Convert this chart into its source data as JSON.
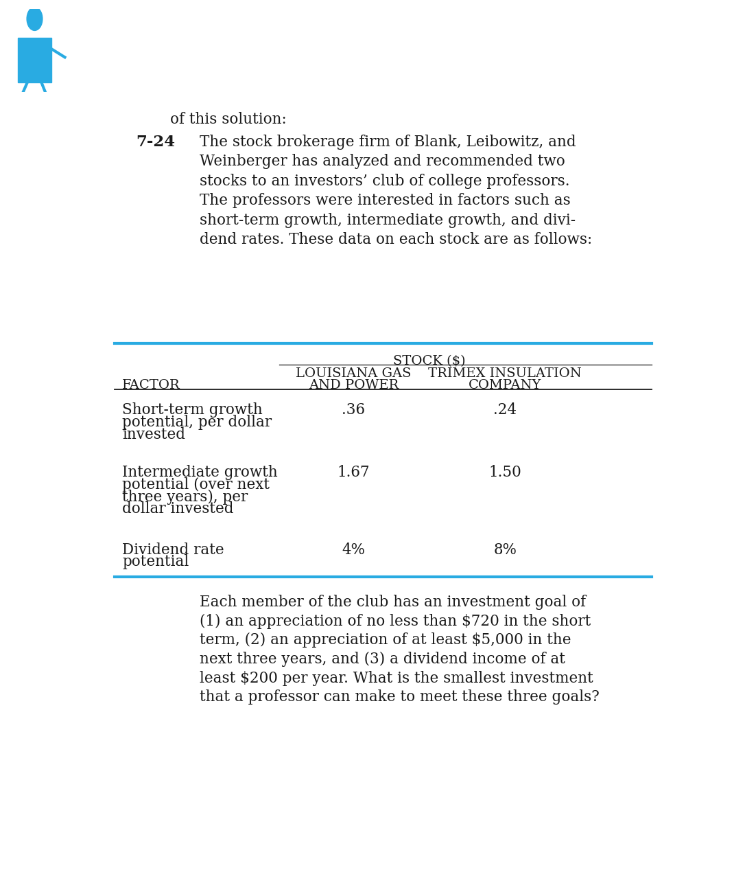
{
  "background_color": "#ffffff",
  "top_text": "of this solution:",
  "problem_number": "7-24",
  "intro_lines": [
    "The stock brokerage firm of Blank, Leibowitz, and",
    "Weinberger has analyzed and recommended two",
    "stocks to an investors’ club of college professors.",
    "The professors were interested in factors such as",
    "short-term growth, intermediate growth, and divi-",
    "dend rates. These data on each stock are as follows:"
  ],
  "table_header_main": "STOCK ($)",
  "col1_header_line1": "LOUISIANA GAS",
  "col1_header_line2": "AND POWER",
  "col2_header_line1": "TRIMEX INSULATION",
  "col2_header_line2": "COMPANY",
  "factor_label": "FACTOR",
  "rows": [
    {
      "factor_lines": [
        "Short-term growth",
        "potential, per dollar",
        "invested"
      ],
      "val1": ".36",
      "val2": ".24"
    },
    {
      "factor_lines": [
        "Intermediate growth",
        "potential (over next",
        "three years), per",
        "dollar invested"
      ],
      "val1": "1.67",
      "val2": "1.50"
    },
    {
      "factor_lines": [
        "Dividend rate",
        "potential"
      ],
      "val1": "4%",
      "val2": "8%"
    }
  ],
  "bottom_lines": [
    "Each member of the club has an investment goal of",
    "(1) an appreciation of no less than $720 in the short",
    "term, (2) an appreciation of at least $5,000 in the",
    "next three years, and (3) a dividend income of at",
    "least $200 per year. What is the smallest investment",
    "that a professor can make to meet these three goals?"
  ],
  "cyan_color": "#29ABE2",
  "text_color": "#1a1a1a",
  "font_size_body": 15.5,
  "font_size_table": 14.0
}
